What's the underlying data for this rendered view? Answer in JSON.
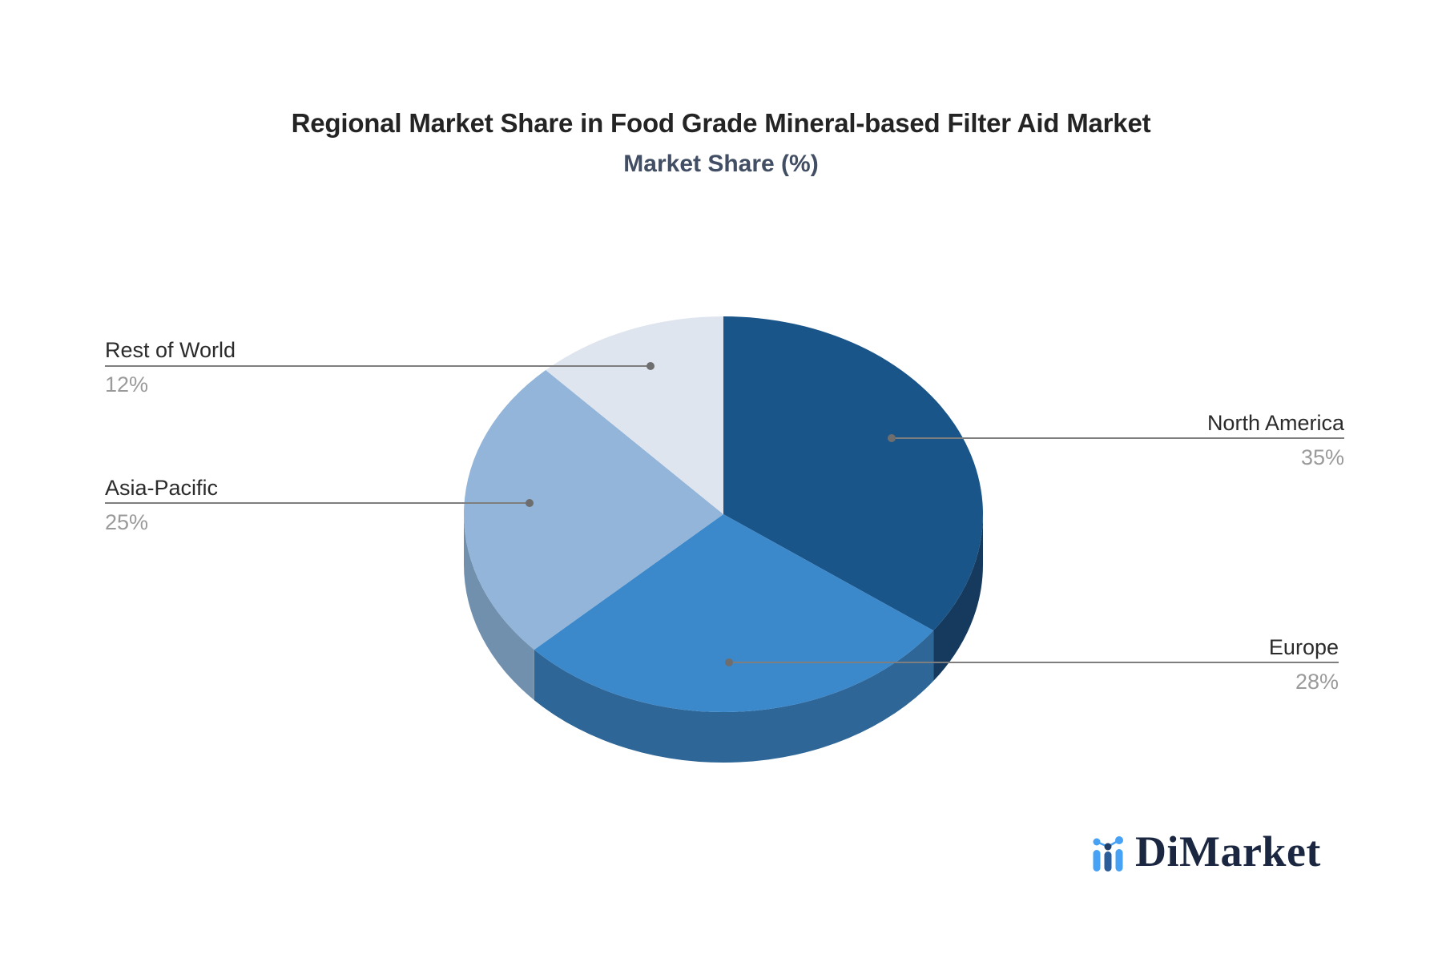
{
  "title": "Regional Market Share in Food Grade Mineral-based Filter Aid Market",
  "subtitle": "Market Share (%)",
  "chart_data": {
    "type": "pie",
    "style": "3d",
    "title": "Regional Market Share in Food Grade Mineral-based Filter Aid Market",
    "subtitle": "Market Share (%)",
    "start_angle_deg": 0,
    "direction": "clockwise",
    "legend_position": "callout-labels",
    "leader_line_color": "#7e7e7e",
    "leader_dot_color": "#6e6e6e",
    "label_color": "#2b2b2b",
    "value_color": "#9a9a9a",
    "slices": [
      {
        "label": "North America",
        "value": 35,
        "display": "35%",
        "color": "#1a5589",
        "side_color": "#163a5e"
      },
      {
        "label": "Europe",
        "value": 28,
        "display": "28%",
        "color": "#3b88cb",
        "side_color": "#2d6697"
      },
      {
        "label": "Asia-Pacific",
        "value": 25,
        "display": "25%",
        "color": "#92b5d9",
        "side_color": "#7190ad"
      },
      {
        "label": "Rest of World",
        "value": 12,
        "display": "12%",
        "color": "#dfe5ef"
      }
    ]
  },
  "logo": {
    "text": "DiMarket",
    "light_blue": "#47a1f5",
    "dark_blue": "#2b5d9b",
    "dark_dot": "#20406b",
    "text_color": "#1b2740"
  }
}
